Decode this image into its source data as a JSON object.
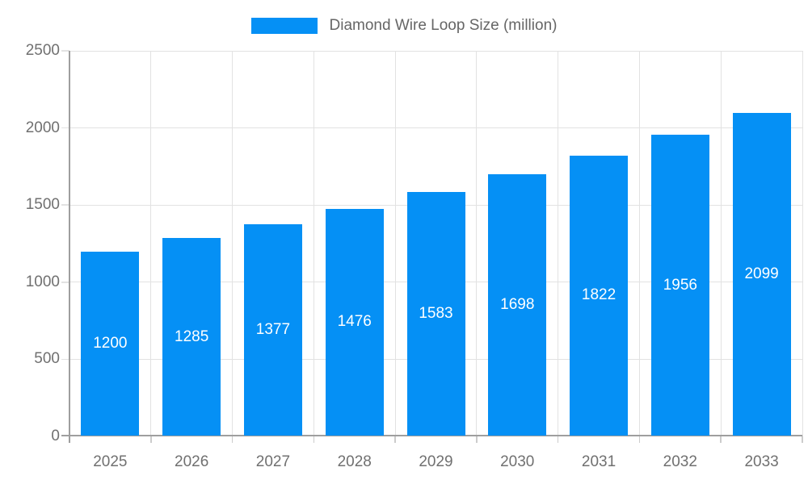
{
  "chart_data": {
    "type": "bar",
    "title": "Diamond Wire Loop Size (million)",
    "legend_position": "top",
    "grid": true,
    "categories": [
      "2025",
      "2026",
      "2027",
      "2028",
      "2029",
      "2030",
      "2031",
      "2032",
      "2033"
    ],
    "values": [
      1200,
      1285,
      1377,
      1476,
      1583,
      1698,
      1822,
      1956,
      2099
    ],
    "xlabel": "",
    "ylabel": "",
    "ylim": [
      0,
      2500
    ],
    "ytick_step": 500,
    "ytick_labels": [
      "0",
      "500",
      "1000",
      "1500",
      "2000",
      "2500"
    ],
    "colors": {
      "bar": "#0590f5",
      "bar_label": "#ffffff",
      "axis_text": "#707070",
      "grid": "#e2e2e2",
      "axis_line": "#9e9e9e",
      "tick": "#cccccc",
      "title": "#666666"
    }
  }
}
